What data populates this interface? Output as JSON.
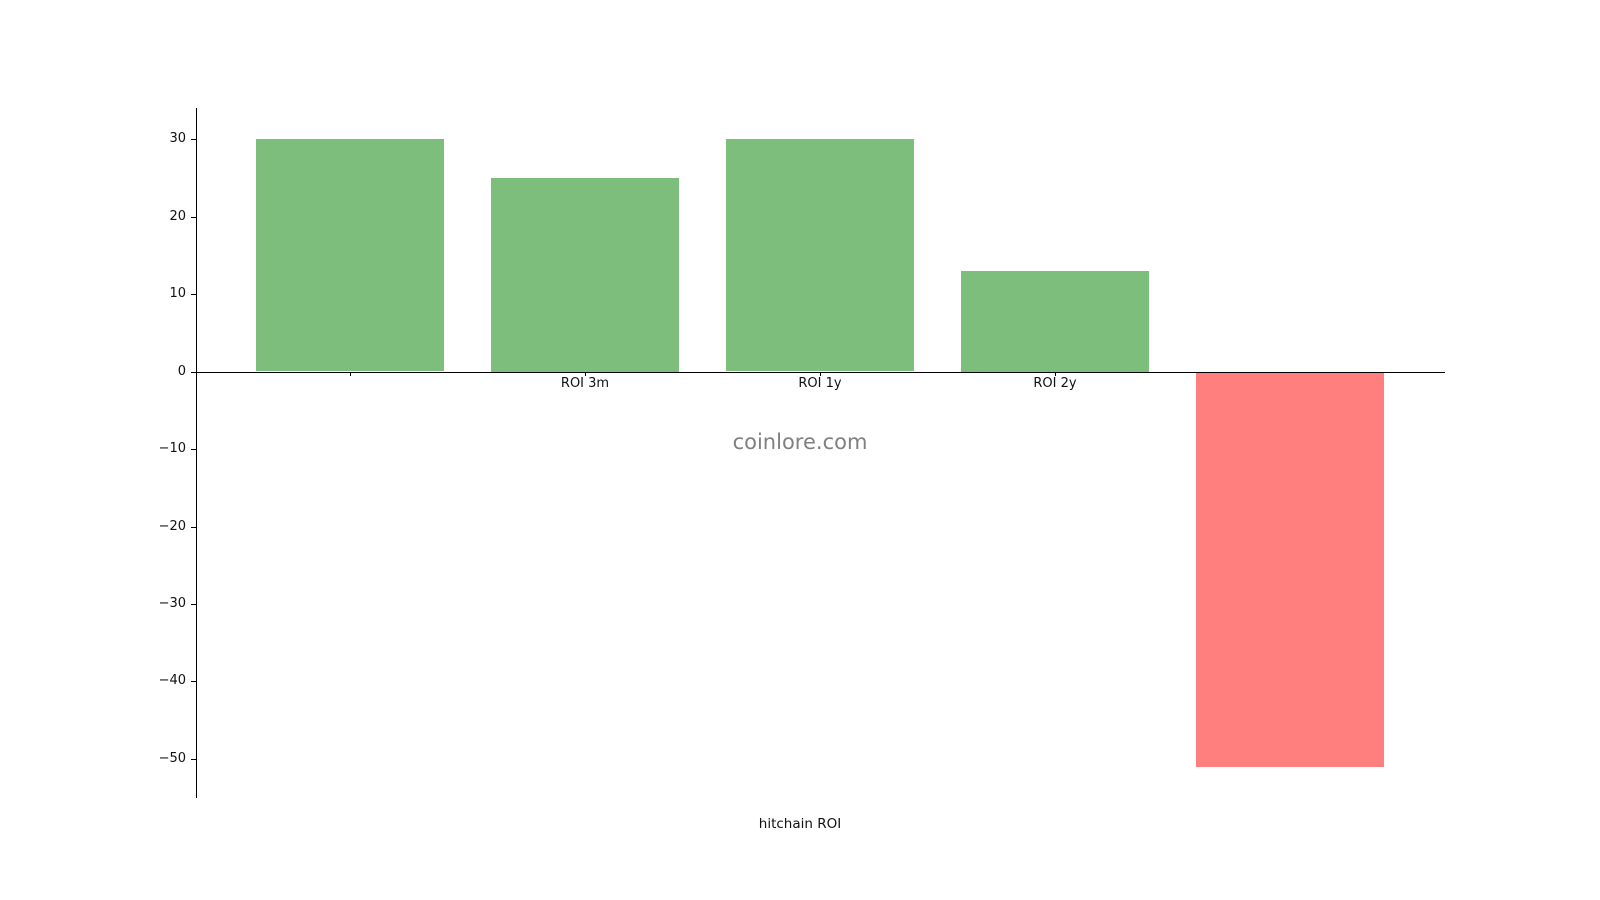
{
  "chart_data": {
    "type": "bar",
    "title": "hitchain ROI",
    "watermark": "coinlore.com",
    "categories": [
      "",
      "ROI 3m",
      "ROI 1y",
      "ROI 2y",
      ""
    ],
    "values": [
      30,
      25,
      30,
      13,
      -51
    ],
    "series": [
      {
        "name": "hitchain ROI",
        "values": [
          30,
          25,
          30,
          13,
          -51
        ]
      }
    ],
    "yticks": [
      30,
      20,
      10,
      0,
      -10,
      -20,
      -30,
      -40,
      -50
    ],
    "ytick_labels": [
      "30",
      "20",
      "10",
      "0",
      "−10",
      "−20",
      "−30",
      "−40",
      "−50"
    ],
    "ylim": [
      -55.05,
      34.05
    ],
    "xlabel": "hitchain ROI",
    "ylabel": "",
    "grid": false,
    "legend": false,
    "positive_color": "#7dbe7d",
    "negative_color": "#ff7f7f",
    "axis_color": "#000000",
    "watermark_color": "#808080"
  }
}
